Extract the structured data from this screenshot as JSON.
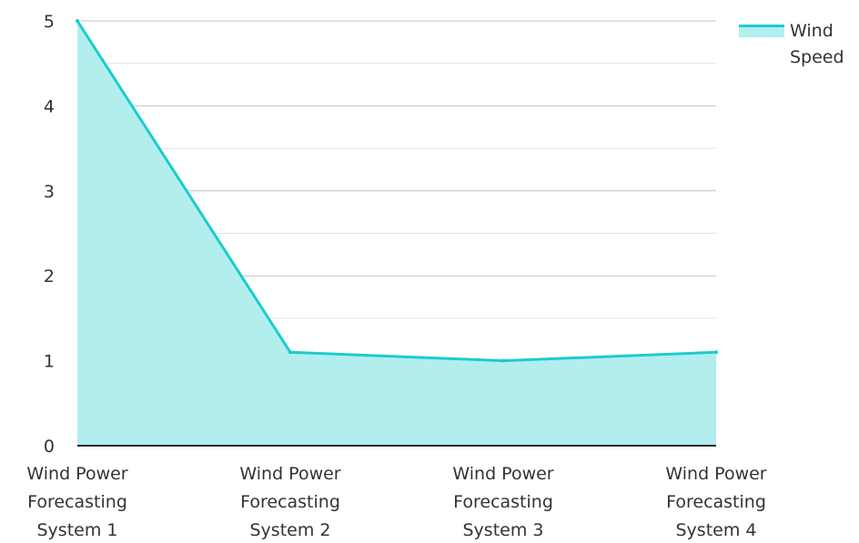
{
  "chart_data": {
    "type": "area",
    "categories": [
      "Wind Power Forecasting System 1",
      "Wind Power Forecasting System 2",
      "Wind Power Forecasting System 3",
      "Wind Power Forecasting System 4"
    ],
    "category_lines": [
      [
        "Wind Power",
        "Forecasting",
        "System 1"
      ],
      [
        "Wind Power",
        "Forecasting",
        "System 2"
      ],
      [
        "Wind Power",
        "Forecasting",
        "System 3"
      ],
      [
        "Wind Power",
        "Forecasting",
        "System 4"
      ]
    ],
    "series": [
      {
        "name": "Wind Speed",
        "values": [
          5,
          1.1,
          1,
          1.1
        ]
      }
    ],
    "yticks": [
      "0",
      "1",
      "2",
      "3",
      "4",
      "5"
    ],
    "ylim": [
      0,
      5
    ],
    "grid": true,
    "legend_position": "top-right",
    "colors": {
      "line": "#1ccccc",
      "fill": "#b2eeee",
      "grid": "#cccccc",
      "axis": "#222222"
    }
  }
}
